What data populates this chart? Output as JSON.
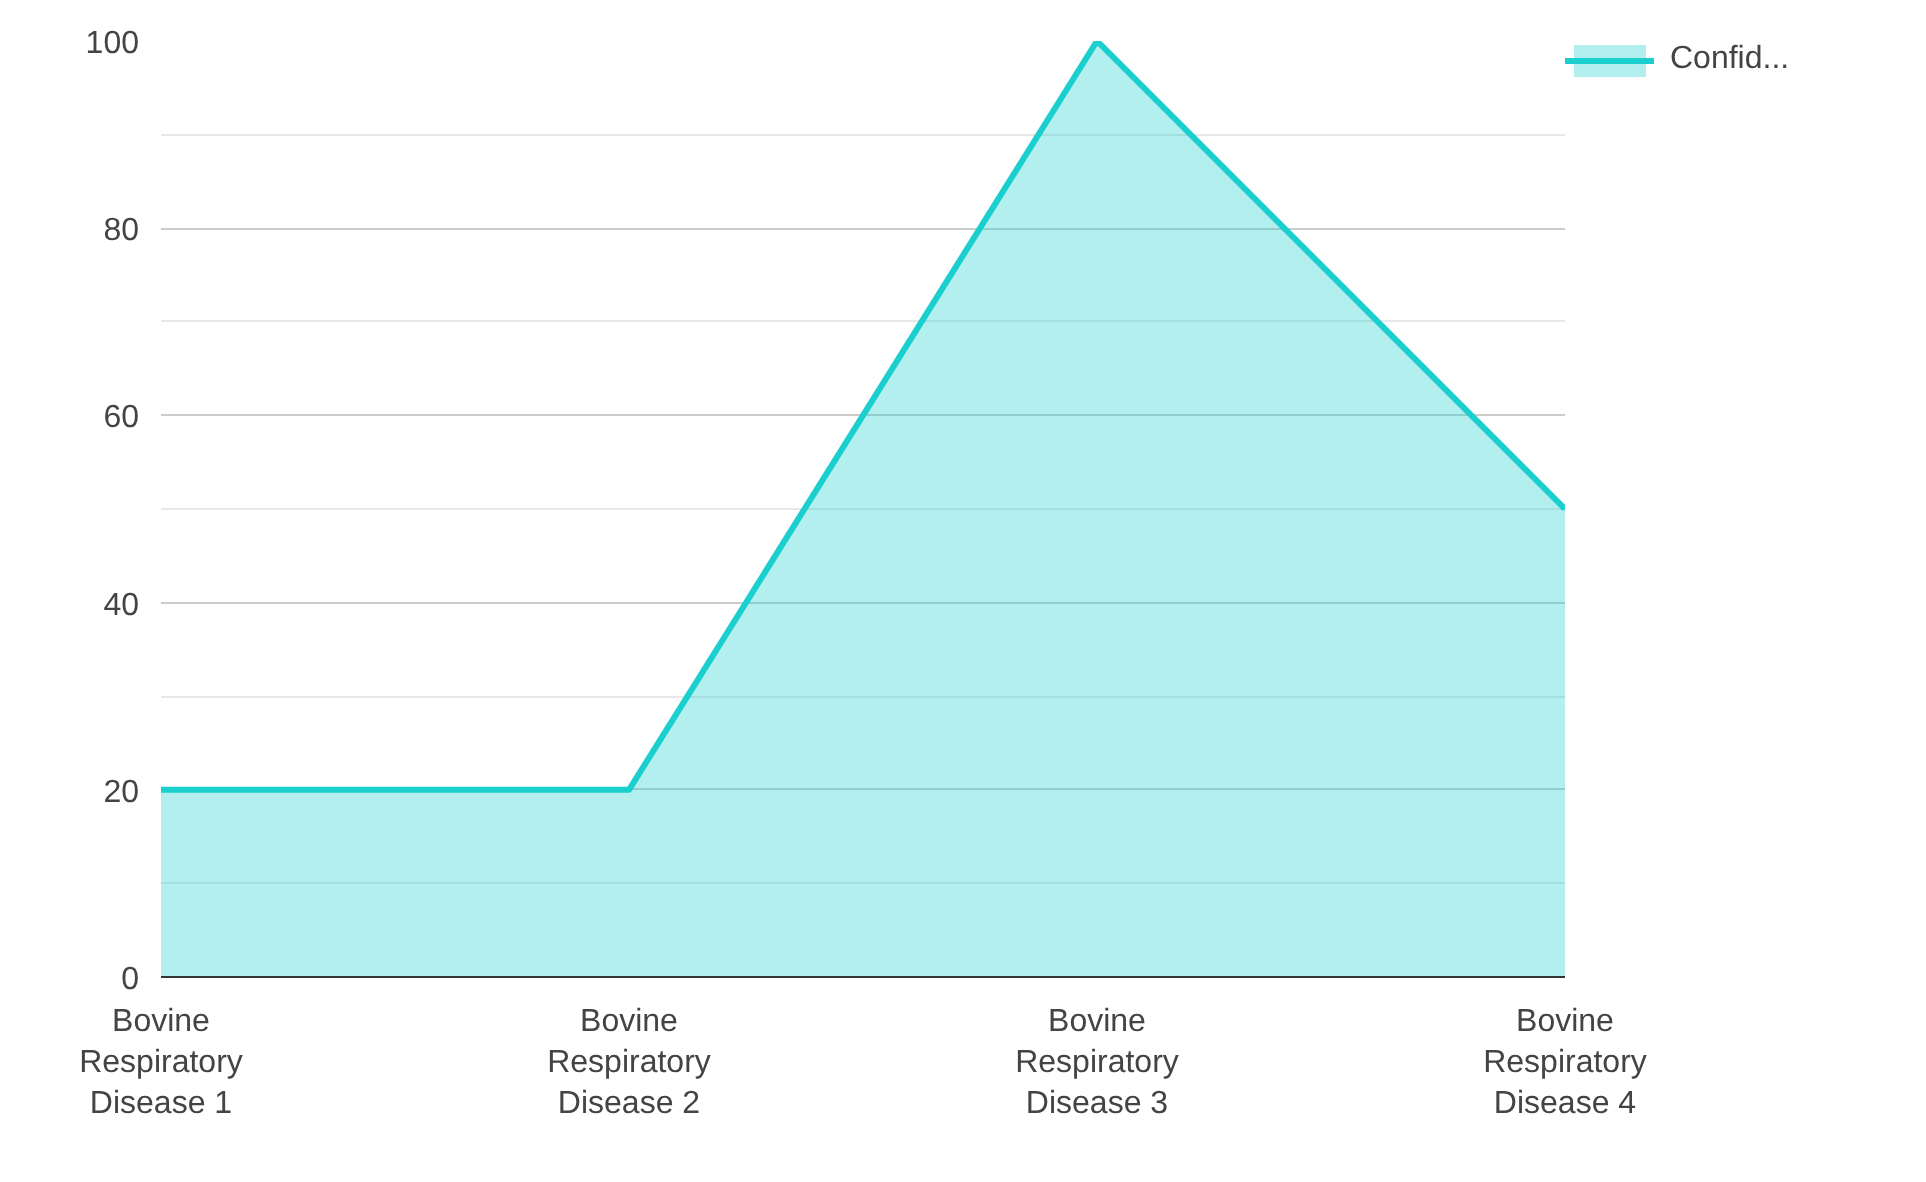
{
  "chart_data": {
    "type": "area",
    "categories": [
      "Bovine Respiratory Disease 1",
      "Bovine Respiratory Disease 2",
      "Bovine Respiratory Disease 3",
      "Bovine Respiratory Disease 4"
    ],
    "series": [
      {
        "name": "Confid...",
        "color": "#1ccfcf",
        "values": [
          20,
          20,
          100,
          50
        ]
      }
    ],
    "ylim": [
      0,
      100
    ],
    "yticks": [
      0,
      20,
      40,
      60,
      80,
      100
    ],
    "grid": "y",
    "legend": "top right"
  }
}
